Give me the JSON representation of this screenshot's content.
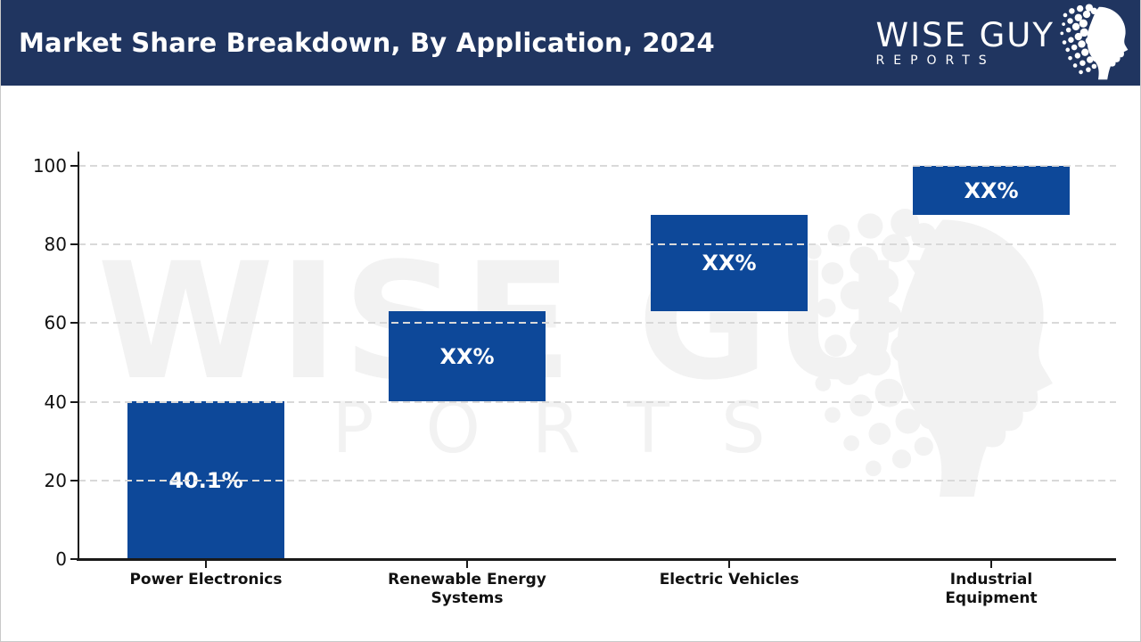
{
  "header": {
    "title": "Market Share Breakdown, By Application, 2024",
    "logo": {
      "name": "WISE GUY",
      "subtitle": "REPORTS"
    },
    "background": "#203560",
    "text_color": "#ffffff"
  },
  "watermark": {
    "name": "WISE GUY",
    "subtitle": "REPORTS"
  },
  "chart_data": {
    "type": "bar",
    "variant": "waterfall",
    "title": "Market Share Breakdown, By Application, 2024",
    "xlabel": "",
    "ylabel": "",
    "ylim": [
      0,
      100
    ],
    "yticks": [
      0,
      20,
      40,
      60,
      80,
      100
    ],
    "grid": {
      "horizontal": true,
      "style": "dashed",
      "color": "#d9d9d9",
      "drawn_above_bars": true
    },
    "legend": null,
    "bar_color": "#0d4899",
    "bar_label_color": "#ffffff",
    "categories": [
      "Power Electronics",
      "Renewable Energy\nSystems",
      "Electric Vehicles",
      "Industrial\nEquipment"
    ],
    "bars": [
      {
        "category": "Power Electronics",
        "start": 0,
        "end": 40.1,
        "label": "40.1%"
      },
      {
        "category": "Renewable Energy Systems",
        "start": 40.1,
        "end": 63,
        "label": "XX%"
      },
      {
        "category": "Electric Vehicles",
        "start": 63,
        "end": 87.5,
        "label": "XX%"
      },
      {
        "category": "Industrial Equipment",
        "start": 87.5,
        "end": 100,
        "label": "XX%"
      }
    ]
  }
}
